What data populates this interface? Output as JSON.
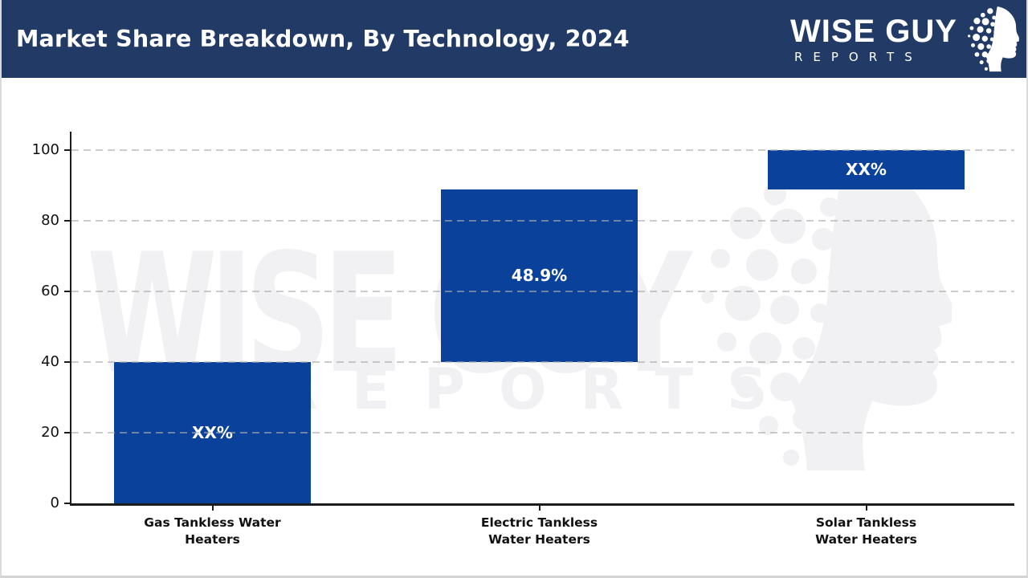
{
  "header": {
    "bg_color": "#223a66",
    "title": "Market Share Breakdown, By Technology, 2024",
    "logo": {
      "wordmark": "WISE GUY",
      "subtext": "REPORTS"
    }
  },
  "watermark": {
    "wordmark": "WISE GUY",
    "subtext": "REPORTS"
  },
  "chart_data": {
    "type": "bar",
    "subtype": "stacked-progression segments (waterfall-style market share breakdown)",
    "title": "Market Share Breakdown, By Technology, 2024",
    "categories": [
      "Gas Tankless Water Heaters",
      "Electric Tankless Water Heaters",
      "Solar Tankless Water Heaters"
    ],
    "category_label_lines": [
      [
        "Gas Tankless Water",
        "Heaters"
      ],
      [
        "Electric Tankless",
        "Water Heaters"
      ],
      [
        "Solar Tankless",
        "Water Heaters"
      ]
    ],
    "bars": [
      {
        "category": "Gas Tankless Water Heaters",
        "start": 0,
        "end": 40,
        "label": "XX%"
      },
      {
        "category": "Electric Tankless Water Heaters",
        "start": 40,
        "end": 88.9,
        "label": "48.9%"
      },
      {
        "category": "Solar Tankless Water Heaters",
        "start": 88.9,
        "end": 100,
        "label": "XX%"
      }
    ],
    "yticks": [
      0,
      20,
      40,
      60,
      80,
      100
    ],
    "ylim": [
      0,
      105
    ],
    "xlabel": "",
    "ylabel": "",
    "bar_color": "#0a429b",
    "grid": {
      "visible": true,
      "style": "dashed",
      "color": "#d6d6d6"
    },
    "axis_color": "#1c1c1c",
    "legend_position": "none"
  }
}
